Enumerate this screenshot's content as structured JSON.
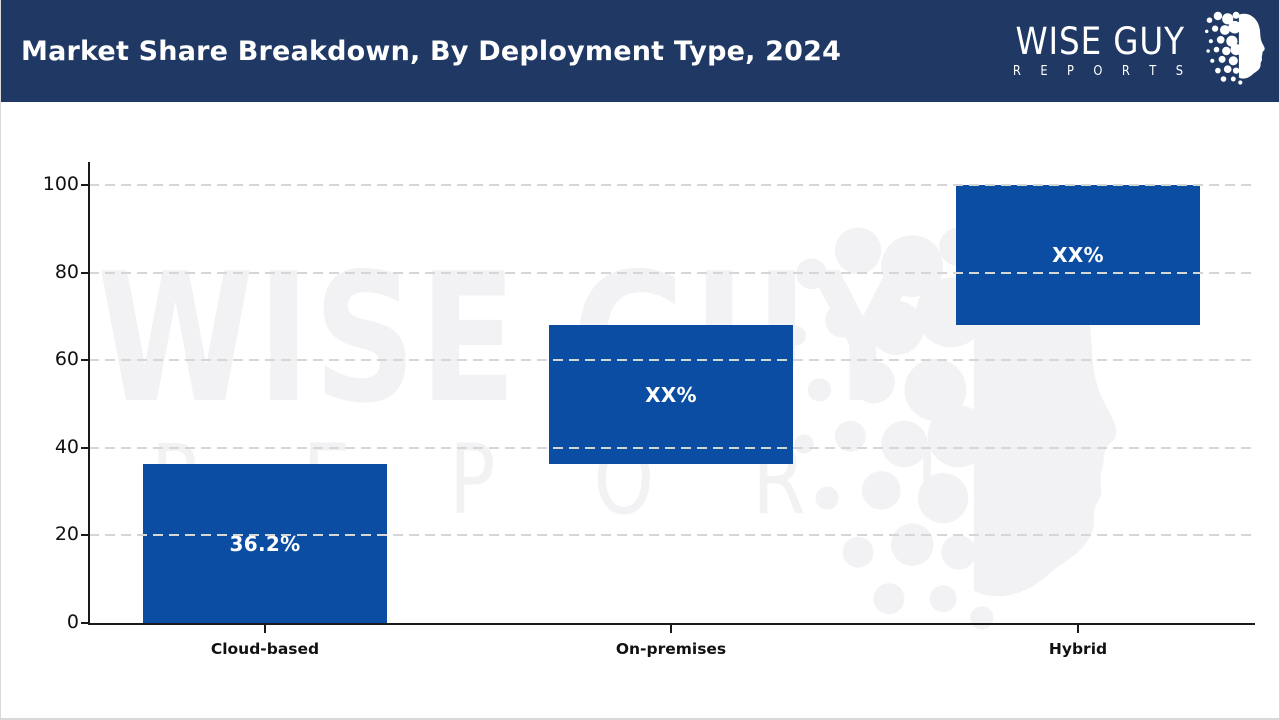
{
  "header": {
    "title": "Market Share Breakdown, By Deployment Type, 2024",
    "background": "#1F3864",
    "logo": {
      "wordmark": "WISE GUY",
      "wordmark_sub": "R E P O R T S",
      "icon": "wise-guy-face-icon"
    }
  },
  "watermark": {
    "line1": "WISE GUY",
    "line2": "R E P O R T S",
    "icon": "wise-guy-face-icon",
    "color": "#F2F2F4"
  },
  "chart_data": {
    "type": "bar",
    "subtype": "waterfall",
    "title": "Market Share Breakdown, By Deployment Type, 2024",
    "categories": [
      "Cloud-based",
      "On-premises",
      "Hybrid"
    ],
    "series": [
      {
        "name": "Market share (%)",
        "segments": [
          {
            "category": "Cloud-based",
            "start": 0,
            "end": 36.2,
            "value": 36.2,
            "label": "36.2%"
          },
          {
            "category": "On-premises",
            "start": 36.2,
            "end": 68,
            "value": 31.8,
            "label": "XX%"
          },
          {
            "category": "Hybrid",
            "start": 68,
            "end": 100,
            "value": 32,
            "label": "XX%"
          }
        ]
      }
    ],
    "xlabel": "",
    "ylabel": "",
    "ylim": [
      0,
      100
    ],
    "yticks": [
      0,
      20,
      40,
      60,
      80,
      100
    ],
    "grid": "horizontal-dashed",
    "legend": "none",
    "bar_color": "#0B4DA2",
    "bar_label_color": "#FFFFFF"
  },
  "colors": {
    "header_bg": "#1F3864",
    "bar_blue": "#0B4DA2",
    "grid": "#D6D6D6",
    "axis": "#1A1A1A",
    "watermark": "#F2F2F4",
    "page_border": "#D9D9D9"
  }
}
